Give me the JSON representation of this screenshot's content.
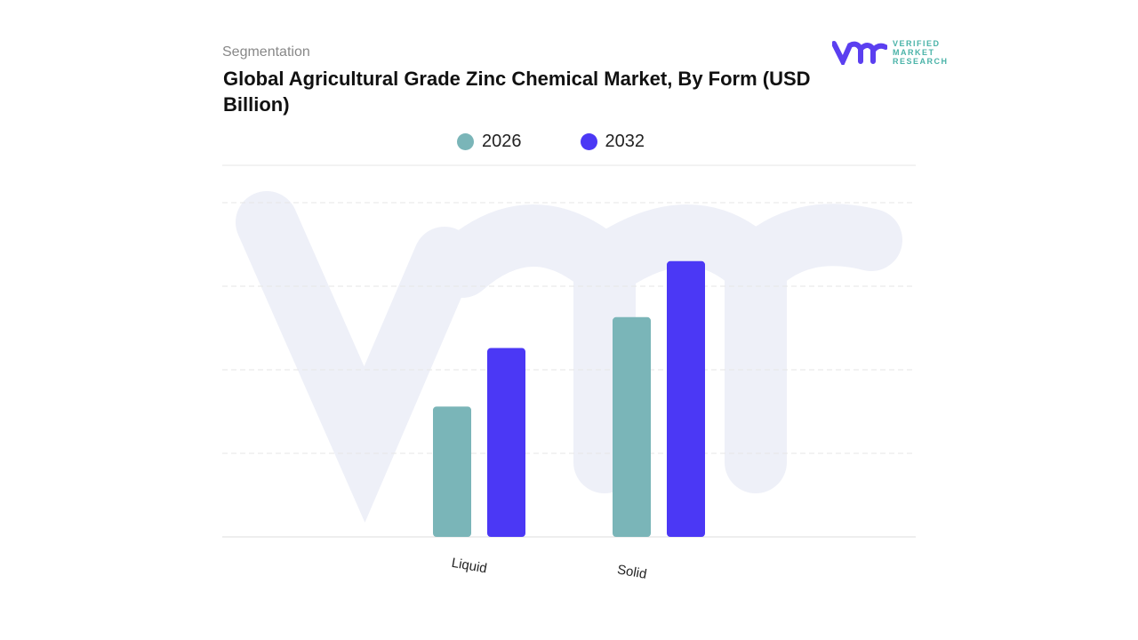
{
  "header": {
    "subtitle": "Segmentation",
    "title": "Global Agricultural Grade Zinc Chemical Market, By Form (USD Billion)"
  },
  "logo": {
    "text_lines": [
      "VERIFIED",
      "MARKET",
      "RESEARCH"
    ],
    "mark": "vmr"
  },
  "colors": {
    "2026": "#7ab5b8",
    "2032": "#4b38f5",
    "watermark": "#eef0f8"
  },
  "chart_data": {
    "type": "bar",
    "title": "Global Agricultural Grade Zinc Chemical Market, By Form (USD Billion)",
    "categories": [
      "Liquid",
      "Solid"
    ],
    "series": [
      {
        "name": "2026",
        "values": [
          1.56,
          2.63
        ]
      },
      {
        "name": "2032",
        "values": [
          2.26,
          3.3
        ]
      }
    ],
    "ylim": [
      0,
      4.5
    ],
    "grid": true,
    "legend": "top-center",
    "xlabel": "",
    "ylabel": ""
  }
}
